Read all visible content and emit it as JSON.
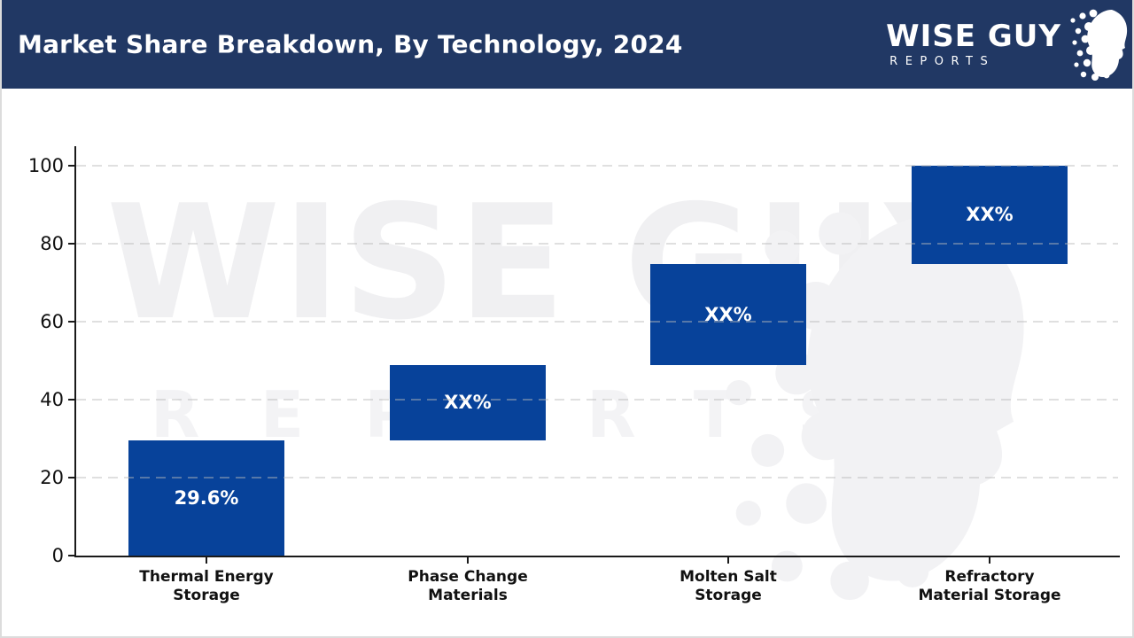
{
  "header": {
    "title": "Market Share Breakdown, By Technology, 2024",
    "logo": {
      "brand": "WISE GUY",
      "sub": "REPORTS"
    }
  },
  "watermark": {
    "brand": "WISE GUY",
    "sub": "REPORTS"
  },
  "colors": {
    "header_bg": "#213864",
    "bar": "#07429A",
    "grid": "#dfdfdf",
    "axis": "#1a1a1a",
    "tick_label": "#111111",
    "value_label": "#ffffff",
    "watermark": "#f0f0f2"
  },
  "chart_data": {
    "type": "bar",
    "subtype": "waterfall",
    "title": "Market Share Breakdown, By Technology, 2024",
    "categories": [
      "Thermal Energy Storage",
      "Phase Change Materials",
      "Molten Salt Storage",
      "Refractory Material Storage"
    ],
    "category_lines": [
      [
        "Thermal Energy",
        "Storage"
      ],
      [
        "Phase Change",
        "Materials"
      ],
      [
        "Molten Salt",
        "Storage"
      ],
      [
        "Refractory",
        "Material Storage"
      ]
    ],
    "segments": [
      {
        "start": 0,
        "end": 29.6,
        "label": "29.6%"
      },
      {
        "start": 29.6,
        "end": 48.9,
        "label": "XX%"
      },
      {
        "start": 48.9,
        "end": 74.8,
        "label": "XX%"
      },
      {
        "start": 74.8,
        "end": 100,
        "label": "XX%"
      }
    ],
    "y_ticks": [
      0,
      20,
      40,
      60,
      80,
      100
    ],
    "ylim": [
      0,
      105
    ],
    "xlabel": "",
    "ylabel": "",
    "grid": "horizontal-dashed",
    "legend": "none"
  }
}
